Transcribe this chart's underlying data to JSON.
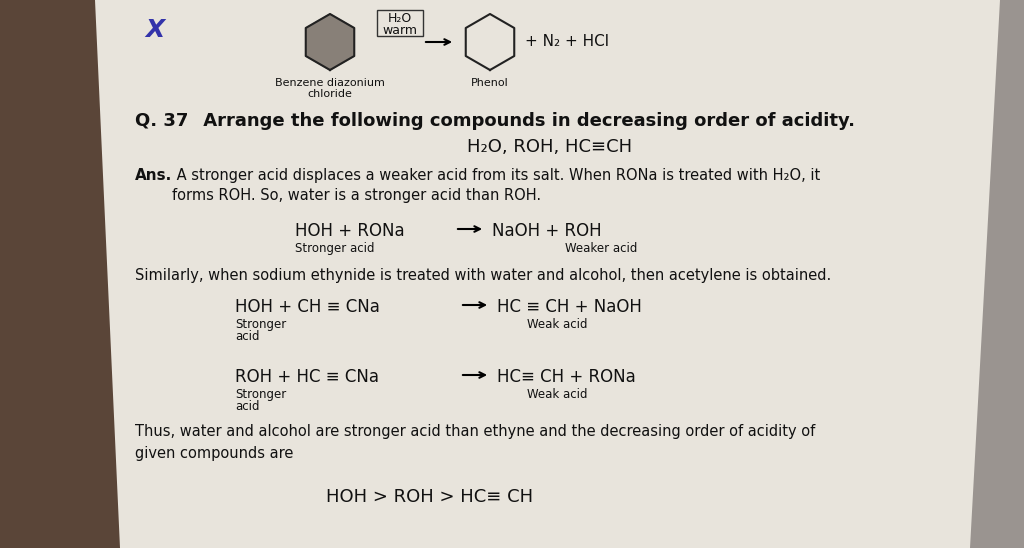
{
  "bg_left_color": "#6b5a4e",
  "bg_page_color": "#ddd8ce",
  "page_right_color": "#c8c4bc",
  "title_bold": "Q. 37",
  "title_rest": " Arrange the following compounds in decreasing order of acidity.",
  "subtitle": "H₂O, ROH, HC≡CH",
  "ans_prefix": "Ans.",
  "ans_line1": " A stronger acid displaces a weaker acid from its salt. When RONa is treated with H₂O, it",
  "ans_line2": "        forms ROH. So, water is a stronger acid than ROH.",
  "eq1_left": "HOH + RONa",
  "eq1_right": "NaOH + ROH",
  "eq1_sub_left": "Stronger acid",
  "eq1_sub_right": "Weaker acid",
  "similarly": "Similarly, when sodium ethynide is treated with water and alcohol, then acetylene is obtained.",
  "eq2_left": "HOH + CH ≡ CNa",
  "eq2_right": "HC ≡ CH + NaOH",
  "eq2_sub_left1": "Stronger",
  "eq2_sub_left2": "acid",
  "eq2_sub_right": "Weak acid",
  "eq3_left": "ROH + HC ≡ CNa",
  "eq3_right": "HC≡ CH + RONa",
  "eq3_sub_left1": "Stronger",
  "eq3_sub_left2": "acid",
  "eq3_sub_right": "Weak acid",
  "concl1": "Thus, water and alcohol are stronger acid than ethyne and the decreasing order of acidity of",
  "concl2": "given compounds are",
  "final": "HOH > ROH > HC≡ CH",
  "top_h2o": "H₂O",
  "top_warm": "warm",
  "top_products": "+ N₂ + HCl",
  "cap_left1": "Benzene diazonium",
  "cap_left2": "chloride",
  "cap_right": "Phenol",
  "arrow_x": "X"
}
